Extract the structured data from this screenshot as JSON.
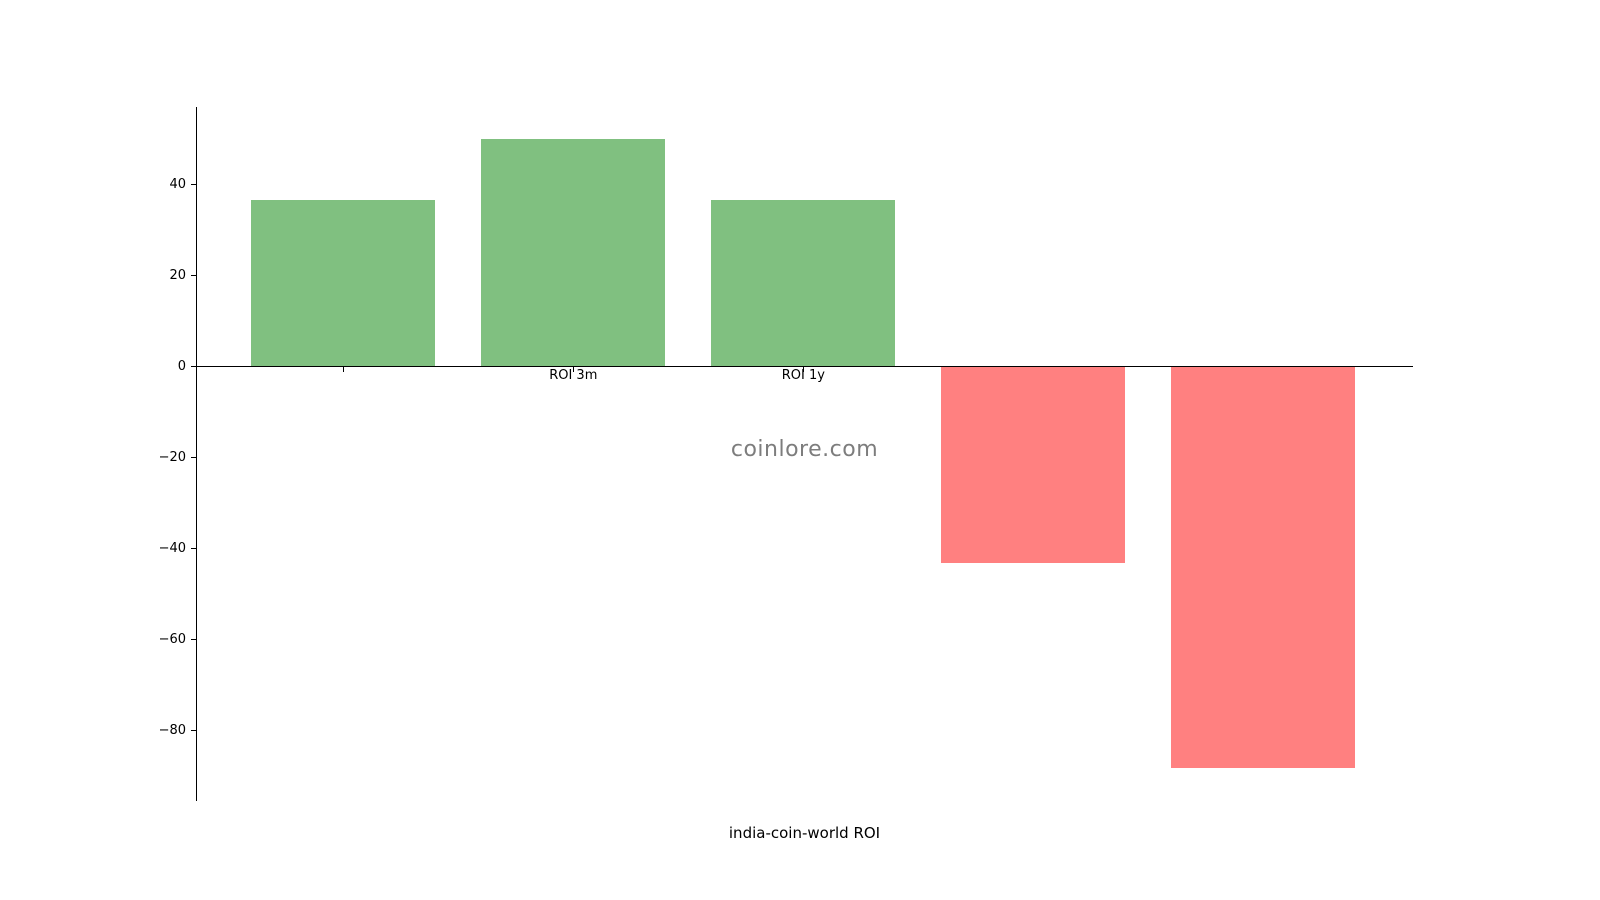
{
  "chart_data": {
    "type": "bar",
    "title": "",
    "xlabel": "india-coin-world ROI",
    "ylabel": "",
    "watermark": "coinlore.com",
    "categories": [
      "",
      "ROI 3m",
      "ROI 1y",
      "",
      ""
    ],
    "values": [
      36.6,
      50.0,
      36.6,
      -43.0,
      -88.2
    ],
    "xticks_at": [
      0,
      1,
      2
    ],
    "yticks": [
      40,
      20,
      0,
      -20,
      -40,
      -60,
      -80
    ],
    "ytick_labels": [
      "40",
      "20",
      "0",
      "−20",
      "−40",
      "−60",
      "−80"
    ],
    "ylim": [
      -95.4,
      57.1
    ],
    "xlim": [
      -0.64,
      4.65
    ],
    "bar_width_fraction": 0.8,
    "grid": false,
    "legend": "none",
    "colors": {
      "positive_bar": "#80c080",
      "negative_bar": "#ff8080",
      "axis": "#000000",
      "watermark": "#7d7d7d",
      "background": "#ffffff"
    }
  }
}
